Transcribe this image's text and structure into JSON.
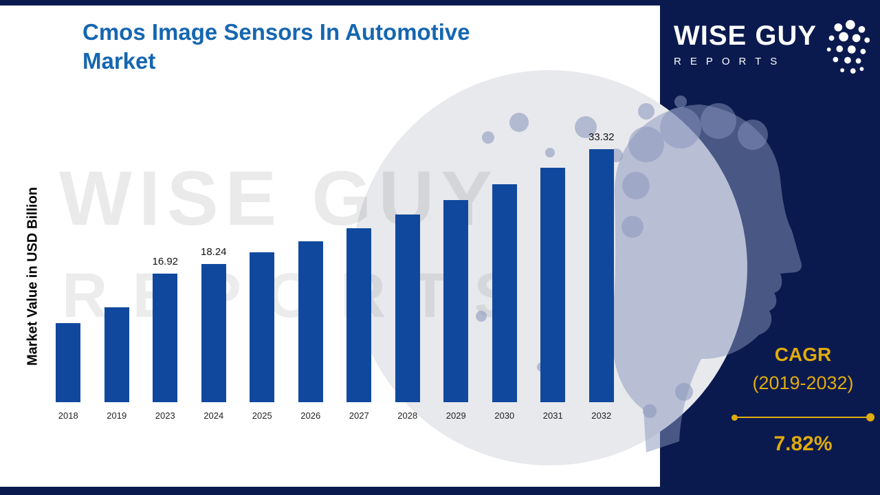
{
  "header": {
    "title": "Cmos Image Sensors In Automotive Market"
  },
  "logo": {
    "name": "WISE GUY",
    "subtitle": "REPORTS"
  },
  "watermark": {
    "line1": "WISE GUY",
    "line2": "REPORTS"
  },
  "cagr": {
    "label": "CAGR",
    "range": "(2019-2032)",
    "value": "7.82%"
  },
  "chart_data": {
    "type": "bar",
    "title": "Cmos Image Sensors In Automotive Market",
    "xlabel": "",
    "ylabel": "Market Value in USD Billion",
    "categories": [
      "2018",
      "2019",
      "2023",
      "2024",
      "2025",
      "2026",
      "2027",
      "2028",
      "2029",
      "2030",
      "2031",
      "2032"
    ],
    "values": [
      10.4,
      12.5,
      16.92,
      18.24,
      19.7,
      21.2,
      22.9,
      24.7,
      26.6,
      28.7,
      30.9,
      33.32
    ],
    "data_labels": [
      "",
      "",
      "16.92",
      "18.24",
      "",
      "",
      "",
      "",
      "",
      "",
      "",
      "33.32"
    ],
    "ylim": [
      0,
      35
    ],
    "grid": false,
    "legend": "none",
    "bar_color": "#10489e"
  },
  "colors": {
    "title_blue": "#1566b1",
    "bar_blue": "#10489e",
    "panel_navy": "#0b1a4e",
    "gold": "#e0ab0c",
    "watermark_gray": "#e8e9ed"
  }
}
